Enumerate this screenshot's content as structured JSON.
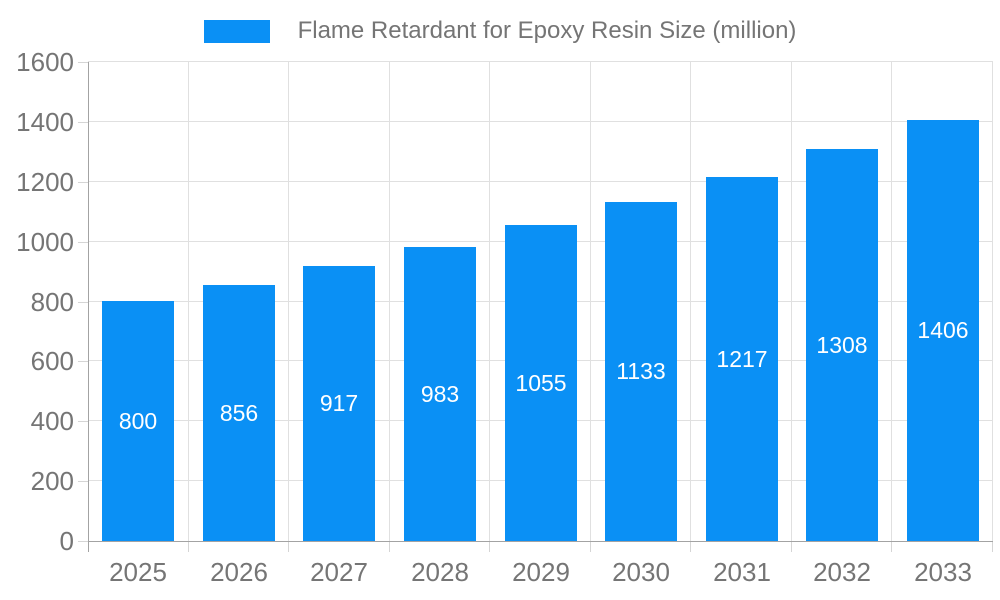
{
  "chart_data": {
    "type": "bar",
    "title": "Flame Retardant for Epoxy Resin Size (million)",
    "categories": [
      "2025",
      "2026",
      "2027",
      "2028",
      "2029",
      "2030",
      "2031",
      "2032",
      "2033"
    ],
    "values": [
      800,
      856,
      917,
      983,
      1055,
      1133,
      1217,
      1308,
      1406
    ],
    "bar_labels": [
      "800",
      "856",
      "917",
      "983",
      "1055",
      "1133",
      "1217",
      "1308",
      "1406"
    ],
    "xlabel": "",
    "ylabel": "",
    "ylim": [
      0,
      1600
    ],
    "ytick_step": 200,
    "yticks": [
      0,
      200,
      400,
      600,
      800,
      1000,
      1200,
      1400,
      1600
    ],
    "grid": true,
    "legend_position": "top",
    "colors": {
      "bar": "#0A90F5",
      "bar_label": "#FFFFFF",
      "axis_text": "#757575",
      "legend_text": "#757575",
      "gridline": "#E0E0E0",
      "tick": "#D5D5D5",
      "axis_line": "#A3A3A3",
      "background": "#FFFFFF"
    }
  }
}
